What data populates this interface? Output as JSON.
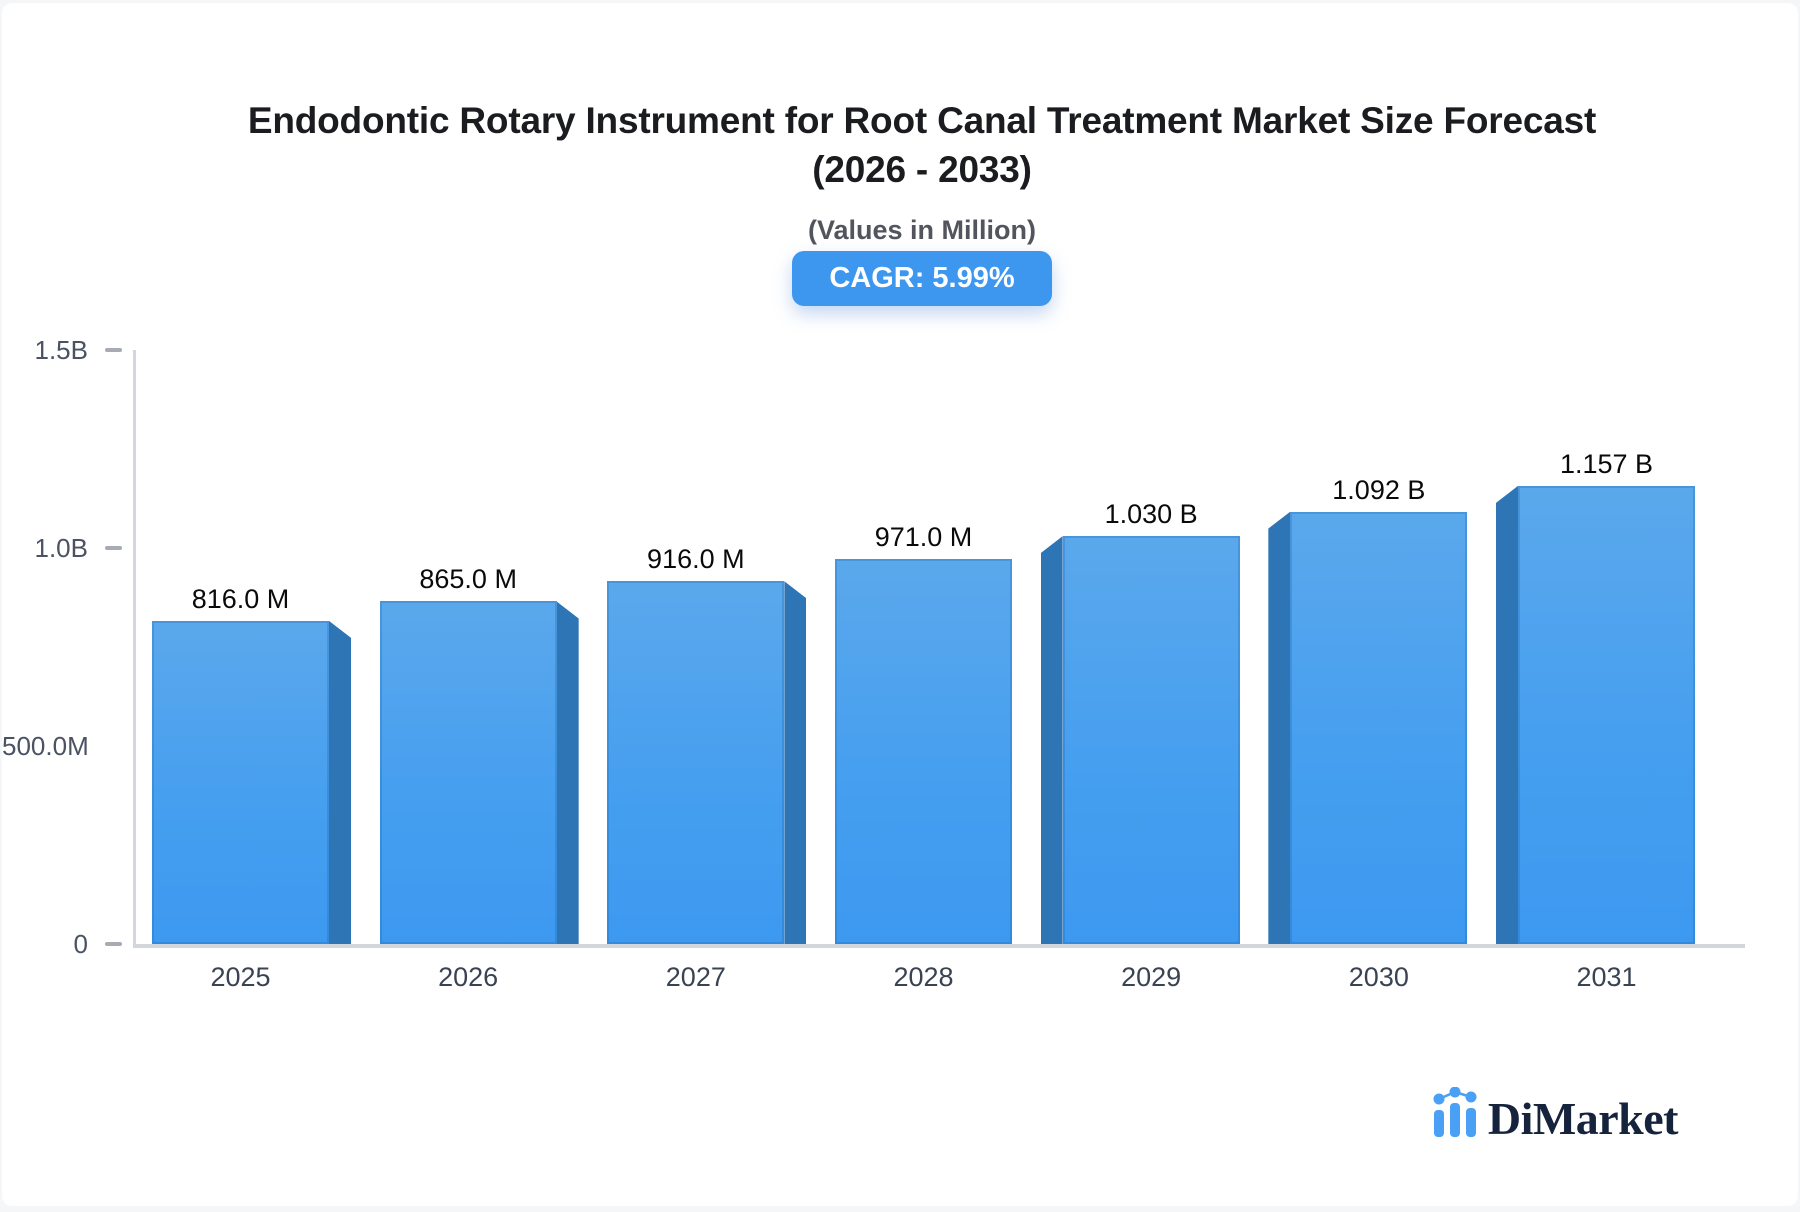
{
  "header": {
    "title_line1": "Endodontic Rotary Instrument for Root Canal Treatment Market Size Forecast",
    "title_line2": "(2026 - 2033)",
    "subtitle": "(Values in Million)",
    "cagr_label": "CAGR: 5.99%"
  },
  "chart_data": {
    "type": "bar",
    "title": "Endodontic Rotary Instrument for Root Canal Treatment Market Size Forecast (2026 - 2033)",
    "subtitle": "(Values in Million)",
    "cagr_percent": 5.99,
    "categories": [
      "2025",
      "2026",
      "2027",
      "2028",
      "2029",
      "2030",
      "2031"
    ],
    "values_millions": [
      816,
      865,
      916,
      971,
      1030,
      1092,
      1157
    ],
    "value_labels": [
      "816.0 M",
      "865.0 M",
      "916.0 M",
      "971.0 M",
      "1.030 B",
      "1.092 B",
      "1.157 B"
    ],
    "ylim": [
      0,
      1500
    ],
    "y_ticks": [
      {
        "label": "1.5B",
        "value": 1500,
        "dash": true
      },
      {
        "label": "1.0B",
        "value": 1000,
        "dash": true
      },
      {
        "label": "500.0M",
        "value": 500,
        "dash": false
      },
      {
        "label": "0",
        "value": 0,
        "dash": true
      }
    ],
    "grid": false,
    "legend": false,
    "bar_style": "3d-extruded-toward-center"
  },
  "colors": {
    "accent_blue": "#3e97ef",
    "bar_face_top": "#5ba8ec",
    "bar_face_bottom": "#3d99f0",
    "bar_side": "#2e75b5",
    "axis_line": "#d3d6db",
    "tick_dash": "#a6abb4",
    "axis_label": "#4a5264",
    "title_text": "#1b1c1f",
    "subtitle_text": "#53555e",
    "badge_text": "#ffffff",
    "logo_navy": "#16233c",
    "logo_blue": "#4aa0f5",
    "page_background": "#f5f6f8",
    "card_background": "#ffffff"
  },
  "logo": {
    "brand": "DiMarket",
    "icon": "bar-line-chart-icon"
  }
}
